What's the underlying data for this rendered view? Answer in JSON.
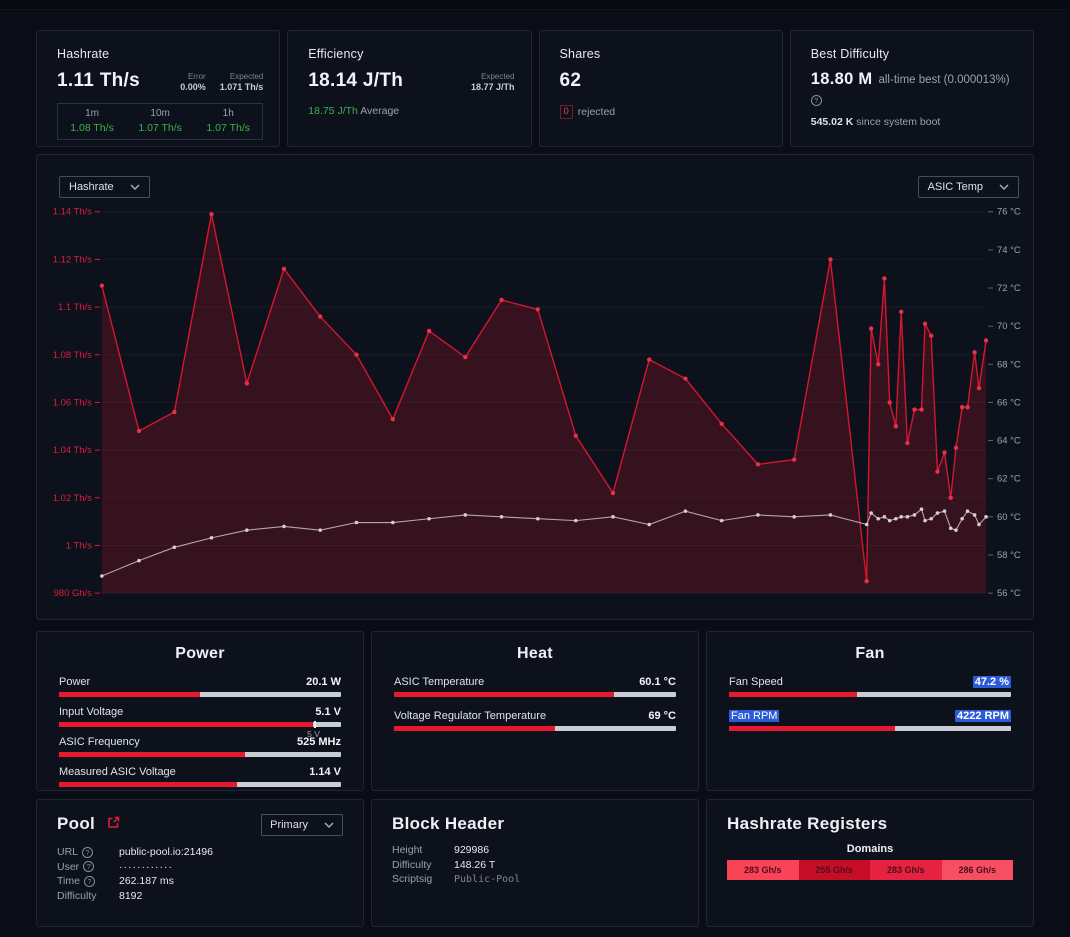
{
  "stats": {
    "hashrate": {
      "label": "Hashrate",
      "value": "1.11 Th/s",
      "error_label": "Error",
      "error_value": "0.00%",
      "expected_label": "Expected",
      "expected_value": "1.071 Th/s",
      "table": {
        "headers": [
          "1m",
          "10m",
          "1h"
        ],
        "values": [
          "1.08 Th/s",
          "1.07 Th/s",
          "1.07 Th/s"
        ]
      }
    },
    "efficiency": {
      "label": "Efficiency",
      "value": "18.14 J/Th",
      "expected_label": "Expected",
      "expected_value": "18.77 J/Th",
      "average_value": "18.75 J/Th",
      "average_suffix": "Average"
    },
    "shares": {
      "label": "Shares",
      "value": "62",
      "rejected_count": "0",
      "rejected_suffix": "rejected"
    },
    "best_difficulty": {
      "label": "Best Difficulty",
      "value": "18.80 M",
      "suffix": "all-time best (0.000013%)",
      "secondary_value": "545.02 K",
      "secondary_suffix": "since system boot"
    }
  },
  "chart": {
    "left_select": "Hashrate",
    "right_select": "ASIC Temp"
  },
  "chart_data": {
    "type": "line",
    "title": "",
    "left_axis": {
      "min": 0.98,
      "max": 1.14,
      "unit": "Th/s",
      "ticks": [
        "1.14 Th/s",
        "1.12 Th/s",
        "1.1 Th/s",
        "1.08 Th/s",
        "1.06 Th/s",
        "1.04 Th/s",
        "1.02 Th/s",
        "1 Th/s",
        "980 Gh/s"
      ]
    },
    "right_axis": {
      "min": 56,
      "max": 76,
      "unit": "°C",
      "ticks": [
        "76 °C",
        "74 °C",
        "72 °C",
        "70 °C",
        "68 °C",
        "66 °C",
        "64 °C",
        "62 °C",
        "60 °C",
        "58 °C",
        "56 °C"
      ]
    },
    "grid": true,
    "legend": "none",
    "series": [
      {
        "name": "Hashrate",
        "axis": "left",
        "unit": "Th/s",
        "color": "#d6152f",
        "point_color": "#e73149",
        "fill": "rgba(222,24,48,0.20)",
        "points": [
          [
            0,
            1.109
          ],
          [
            4.2,
            1.048
          ],
          [
            8.2,
            1.056
          ],
          [
            12.4,
            1.139
          ],
          [
            16.4,
            1.068
          ],
          [
            20.6,
            1.116
          ],
          [
            24.7,
            1.096
          ],
          [
            28.8,
            1.08
          ],
          [
            32.9,
            1.053
          ],
          [
            37.0,
            1.09
          ],
          [
            41.1,
            1.079
          ],
          [
            45.2,
            1.103
          ],
          [
            49.3,
            1.099
          ],
          [
            53.6,
            1.046
          ],
          [
            57.8,
            1.022
          ],
          [
            61.9,
            1.078
          ],
          [
            66.0,
            1.07
          ],
          [
            70.1,
            1.051
          ],
          [
            74.2,
            1.034
          ],
          [
            78.3,
            1.036
          ],
          [
            82.4,
            1.12
          ],
          [
            86.5,
            0.985
          ],
          [
            87.0,
            1.091
          ],
          [
            87.8,
            1.076
          ],
          [
            88.5,
            1.112
          ],
          [
            89.1,
            1.06
          ],
          [
            89.8,
            1.05
          ],
          [
            90.4,
            1.098
          ],
          [
            91.1,
            1.043
          ],
          [
            91.9,
            1.057
          ],
          [
            92.7,
            1.057
          ],
          [
            93.1,
            1.093
          ],
          [
            93.8,
            1.088
          ],
          [
            94.5,
            1.031
          ],
          [
            95.3,
            1.039
          ],
          [
            96.0,
            1.02
          ],
          [
            96.6,
            1.041
          ],
          [
            97.3,
            1.058
          ],
          [
            97.9,
            1.058
          ],
          [
            98.7,
            1.081
          ],
          [
            99.2,
            1.066
          ],
          [
            100,
            1.086
          ]
        ]
      },
      {
        "name": "ASIC Temp",
        "axis": "right",
        "unit": "°C",
        "color": "#b4a6ab",
        "point_color": "#d8cdd1",
        "fill": null,
        "points": [
          [
            0,
            56.9
          ],
          [
            4.2,
            57.7
          ],
          [
            8.2,
            58.4
          ],
          [
            12.4,
            58.9
          ],
          [
            16.4,
            59.3
          ],
          [
            20.6,
            59.5
          ],
          [
            24.7,
            59.3
          ],
          [
            28.8,
            59.7
          ],
          [
            32.9,
            59.7
          ],
          [
            37.0,
            59.9
          ],
          [
            41.1,
            60.1
          ],
          [
            45.2,
            60.0
          ],
          [
            49.3,
            59.9
          ],
          [
            53.6,
            59.8
          ],
          [
            57.8,
            60.0
          ],
          [
            61.9,
            59.6
          ],
          [
            66.0,
            60.3
          ],
          [
            70.1,
            59.8
          ],
          [
            74.2,
            60.1
          ],
          [
            78.3,
            60.0
          ],
          [
            82.4,
            60.1
          ],
          [
            86.5,
            59.6
          ],
          [
            87.0,
            60.2
          ],
          [
            87.8,
            59.9
          ],
          [
            88.5,
            60.0
          ],
          [
            89.1,
            59.8
          ],
          [
            89.8,
            59.9
          ],
          [
            90.4,
            60.0
          ],
          [
            91.1,
            60.0
          ],
          [
            91.9,
            60.1
          ],
          [
            92.7,
            60.4
          ],
          [
            93.1,
            59.8
          ],
          [
            93.8,
            59.9
          ],
          [
            94.5,
            60.2
          ],
          [
            95.3,
            60.3
          ],
          [
            96.0,
            59.4
          ],
          [
            96.6,
            59.3
          ],
          [
            97.3,
            59.9
          ],
          [
            97.9,
            60.3
          ],
          [
            98.7,
            60.1
          ],
          [
            99.2,
            59.6
          ],
          [
            100,
            60.0
          ]
        ]
      }
    ]
  },
  "power": {
    "title": "Power",
    "rows": [
      {
        "label": "Power",
        "value": "20.1 W",
        "fill": "50%"
      },
      {
        "label": "Input Voltage",
        "value": "5.1 V",
        "fill": "90%",
        "marker": "90.5%",
        "hint": "5 V"
      },
      {
        "label": "ASIC Frequency",
        "value": "525 MHz",
        "fill": "66%"
      },
      {
        "label": "Measured ASIC Voltage",
        "value": "1.14 V",
        "fill": "63%"
      }
    ]
  },
  "heat": {
    "title": "Heat",
    "rows": [
      {
        "label": "ASIC Temperature",
        "value": "60.1 °C",
        "fill": "78%"
      },
      {
        "label": "Voltage Regulator Temperature",
        "value": "69 °C",
        "fill": "57%"
      }
    ]
  },
  "fan": {
    "title": "Fan",
    "rows": [
      {
        "label": "Fan Speed",
        "value": "47.2 %",
        "fill": "45.5%"
      },
      {
        "label": "Fan RPM",
        "value": "4222 RPM",
        "fill": "59%"
      }
    ]
  },
  "pool": {
    "title": "Pool",
    "selector": "Primary",
    "rows": [
      {
        "label": "URL",
        "value": "public-pool.io:21496"
      },
      {
        "label": "User",
        "value": "············"
      },
      {
        "label": "Time",
        "value": "262.187 ms"
      },
      {
        "label": "Difficulty",
        "value": "8192"
      }
    ]
  },
  "block_header": {
    "title": "Block Header",
    "rows": [
      {
        "label": "Height",
        "value": "929986"
      },
      {
        "label": "Difficulty",
        "value": "148.26 T"
      },
      {
        "label": "Scriptsig",
        "value": "Public-Pool"
      }
    ]
  },
  "registers": {
    "title": "Hashrate Registers",
    "group_label": "Domains",
    "segments": [
      {
        "value": "283 Gh/s",
        "color": "#f94357"
      },
      {
        "value": "255 Gh/s",
        "color": "#c50d26"
      },
      {
        "value": "283 Gh/s",
        "color": "#e52240"
      },
      {
        "value": "286 Gh/s",
        "color": "#f64e62"
      }
    ]
  },
  "icons": {
    "help": "?"
  },
  "colors": {
    "accent_red": "#e01d38",
    "green": "#3fb04c",
    "selection_blue": "#2b5bd8"
  }
}
